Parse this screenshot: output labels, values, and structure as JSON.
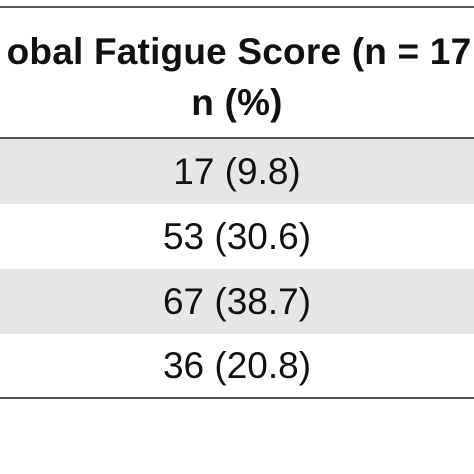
{
  "table": {
    "header": {
      "line1": "obal Fatigue Score (n = 17",
      "line2": "n (%)"
    },
    "rows": [
      {
        "value": "17 (9.8)"
      },
      {
        "value": "53 (30.6)"
      },
      {
        "value": "67 (38.7)"
      },
      {
        "value": "36 (20.8)"
      }
    ],
    "colors": {
      "shaded_row": "#e6e6e6",
      "rule": "#555555"
    }
  }
}
